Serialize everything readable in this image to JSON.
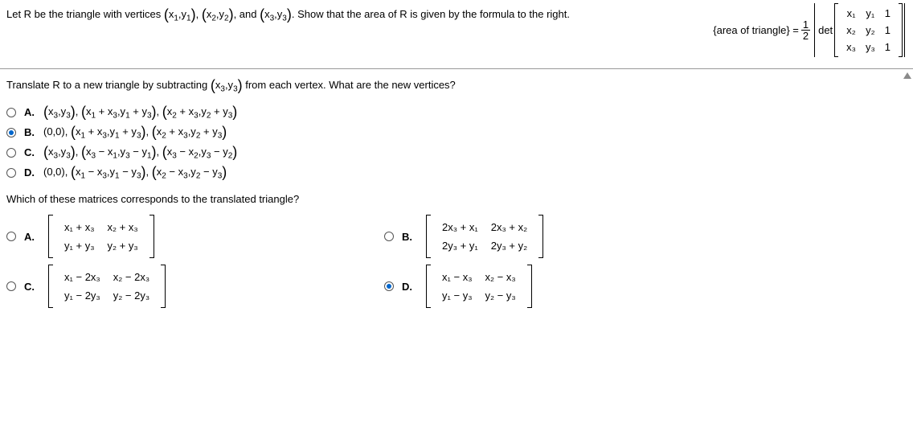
{
  "problem": {
    "text": "Let R be the triangle with vertices (x₁,y₁), (x₂,y₂), and (x₃,y₃). Show that the area of R is given by the formula to the right.",
    "formula_label": "{area of triangle} =",
    "formula_frac_num": "1",
    "formula_frac_den": "2",
    "det_label": "det",
    "matrix": {
      "r1c1": "x₁",
      "r1c2": "y₁",
      "r1c3": "1",
      "r2c1": "x₂",
      "r2c2": "y₂",
      "r2c3": "1",
      "r3c1": "x₃",
      "r3c2": "y₃",
      "r3c3": "1"
    }
  },
  "q1": {
    "text": "Translate R to a new triangle by subtracting (x₃,y₃) from each vertex. What are the new vertices?",
    "options": {
      "A": {
        "label": "A.",
        "content": "(x₃,y₃), (x₁ + x₃,y₁ + y₃), (x₂ + x₃,y₂ + y₃)",
        "selected": false
      },
      "B": {
        "label": "B.",
        "content": "(0,0), (x₁ + x₃,y₁ + y₃), (x₂ + x₃,y₂ + y₃)",
        "selected": true
      },
      "C": {
        "label": "C.",
        "content": "(x₃,y₃), (x₃ − x₁,y₃ − y₁), (x₃ − x₂,y₃ − y₂)",
        "selected": false
      },
      "D": {
        "label": "D.",
        "content": "(0,0), (x₁ − x₃,y₁ − y₃), (x₂ − x₃,y₂ − y₃)",
        "selected": false
      }
    }
  },
  "q2": {
    "text": "Which of these matrices corresponds to the translated triangle?",
    "options": {
      "A": {
        "label": "A.",
        "r1c1": "x₁ + x₃",
        "r1c2": "x₂ + x₃",
        "r2c1": "y₁ + y₃",
        "r2c2": "y₂ + y₃",
        "selected": false
      },
      "B": {
        "label": "B.",
        "r1c1": "2x₃ + x₁",
        "r1c2": "2x₃ + x₂",
        "r2c1": "2y₃ + y₁",
        "r2c2": "2y₃ + y₂",
        "selected": false
      },
      "C": {
        "label": "C.",
        "r1c1": "x₁ − 2x₃",
        "r1c2": "x₂ − 2x₃",
        "r2c1": "y₁ − 2y₃",
        "r2c2": "y₂ − 2y₃",
        "selected": false
      },
      "D": {
        "label": "D.",
        "r1c1": "x₁ − x₃",
        "r1c2": "x₂ − x₃",
        "r2c1": "y₁ − y₃",
        "r2c2": "y₂ − y₃",
        "selected": true
      }
    }
  }
}
